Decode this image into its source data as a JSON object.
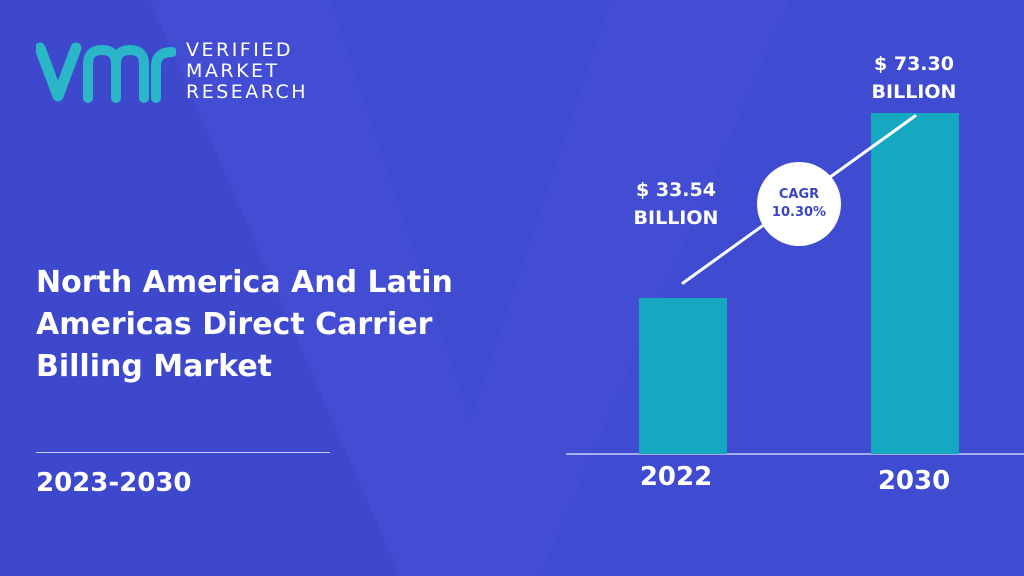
{
  "brand": {
    "line1": "VERIFIED",
    "line2": "MARKET",
    "line3": "RESEARCH",
    "logo_mark": "vmr-logo-icon",
    "logo_color": "#2bb6c8"
  },
  "title": "North America And Latin Americas Direct Carrier Billing Market",
  "period": "2023-2030",
  "colors": {
    "background": "#3f4bd0",
    "bar": "#16a8c0",
    "text": "#ffffff"
  },
  "chart_data": {
    "type": "bar",
    "categories": [
      "2022",
      "2030"
    ],
    "values": [
      33.54,
      73.3
    ],
    "value_labels": [
      [
        "$ 33.54",
        "BILLION"
      ],
      [
        "$ 73.30",
        "BILLION"
      ]
    ],
    "cagr": {
      "label": "CAGR",
      "value": "10.30%"
    },
    "title": "",
    "xlabel": "",
    "ylabel": "",
    "ylim": [
      0,
      73.3
    ],
    "grid": false
  }
}
